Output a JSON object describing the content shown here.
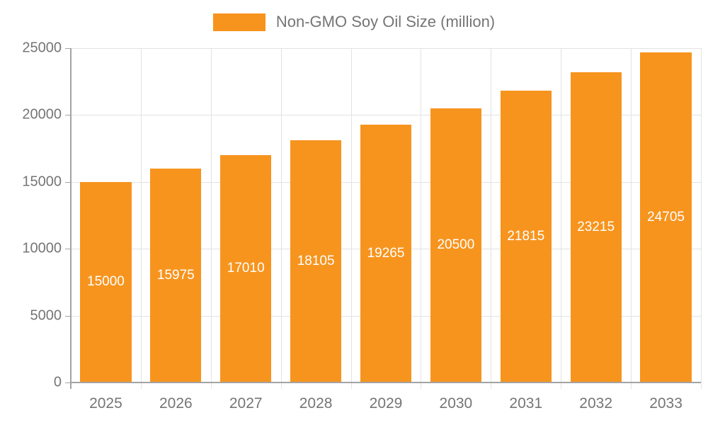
{
  "chart_data": {
    "type": "bar",
    "title": "Non-GMO Soy Oil Size (million)",
    "categories": [
      "2025",
      "2026",
      "2027",
      "2028",
      "2029",
      "2030",
      "2031",
      "2032",
      "2033"
    ],
    "values": [
      15000,
      15975,
      17010,
      18105,
      19265,
      20500,
      21815,
      23215,
      24705
    ],
    "series": [
      {
        "name": "Non-GMO Soy Oil Size (million)",
        "values": [
          15000,
          15975,
          17010,
          18105,
          19265,
          20500,
          21815,
          23215,
          24705
        ]
      }
    ],
    "xlabel": "",
    "ylabel": "",
    "ylim": [
      0,
      25000
    ],
    "yticks": [
      0,
      5000,
      10000,
      15000,
      20000,
      25000
    ],
    "ytick_labels": [
      "0",
      "5000",
      "10000",
      "15000",
      "20000",
      "25000"
    ],
    "grid": true,
    "legend_position": "top-center",
    "bar_labels_visible": true,
    "colors": {
      "bar": "#f7941e",
      "bar_label_text": "#ffffff",
      "axis_line": "#a3a3a3",
      "gridline": "#e2e2e2",
      "tick_label_text": "#757575",
      "legend_text": "#757575",
      "background": "#ffffff"
    }
  }
}
